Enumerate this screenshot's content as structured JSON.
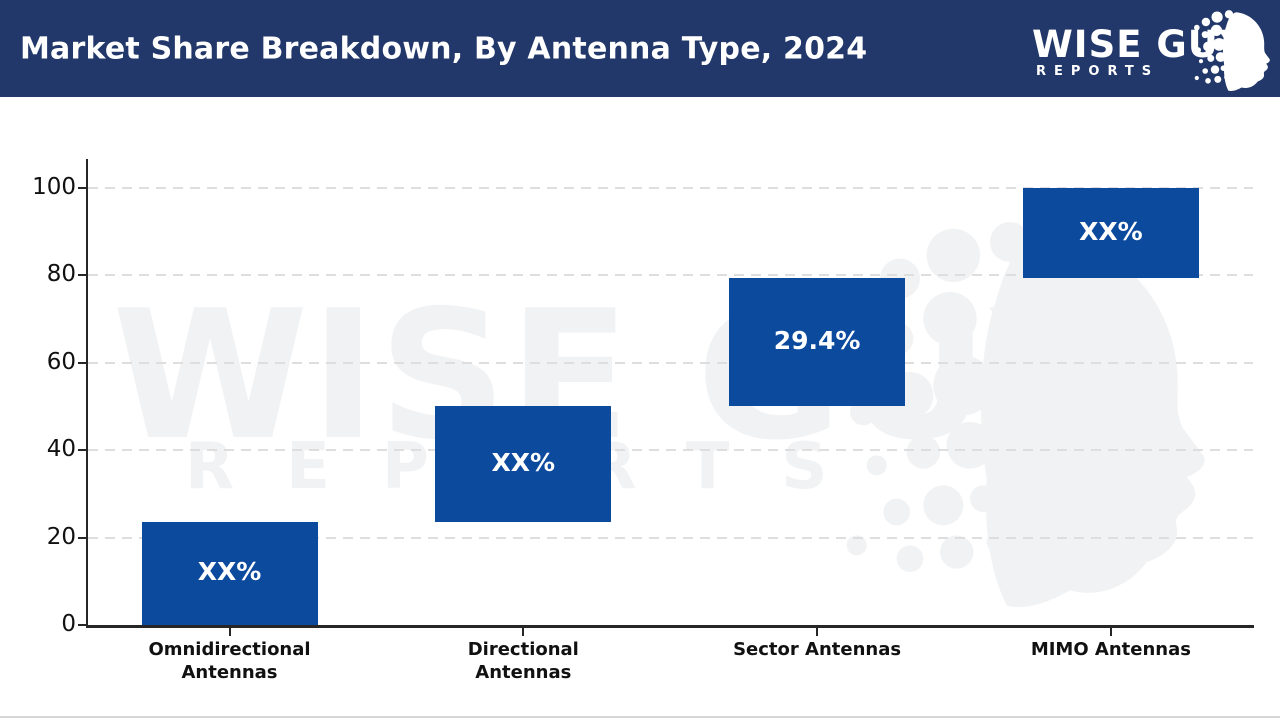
{
  "header": {
    "title": "Market Share Breakdown, By Antenna Type, 2024",
    "logo_line1": "WISE GUY",
    "logo_line2": "REPORTS"
  },
  "watermark": {
    "line1": "WISE GUY",
    "line2": "REPORTS"
  },
  "colors": {
    "header_bg": "#22386a",
    "bar": "#0c4a9e",
    "grid": "#dedede",
    "axis": "#262626",
    "bar_label_text": "#ffffff",
    "tick_text": "#111111",
    "watermark": "#f1f2f3"
  },
  "chart_data": {
    "type": "bar",
    "variant": "waterfall",
    "title": "Market Share Breakdown, By Antenna Type, 2024",
    "categories": [
      [
        "Omnidirectional",
        "Antennas"
      ],
      [
        "Directional",
        "Antennas"
      ],
      [
        "Sector Antennas"
      ],
      [
        "MIMO Antennas"
      ]
    ],
    "bars": [
      {
        "label": "XX%",
        "start": 0.0,
        "end": 23.6
      },
      {
        "label": "XX%",
        "start": 23.6,
        "end": 50.0
      },
      {
        "label": "29.4%",
        "start": 50.0,
        "end": 79.4
      },
      {
        "label": "XX%",
        "start": 79.4,
        "end": 100.0
      }
    ],
    "values_estimated": [
      23.6,
      26.4,
      29.4,
      20.6
    ],
    "yticks": [
      0,
      20,
      40,
      60,
      80,
      100
    ],
    "ylim": [
      0,
      105
    ],
    "xlabel": "",
    "ylabel": "",
    "legend": "none",
    "grid": "horizontal-dashed"
  }
}
